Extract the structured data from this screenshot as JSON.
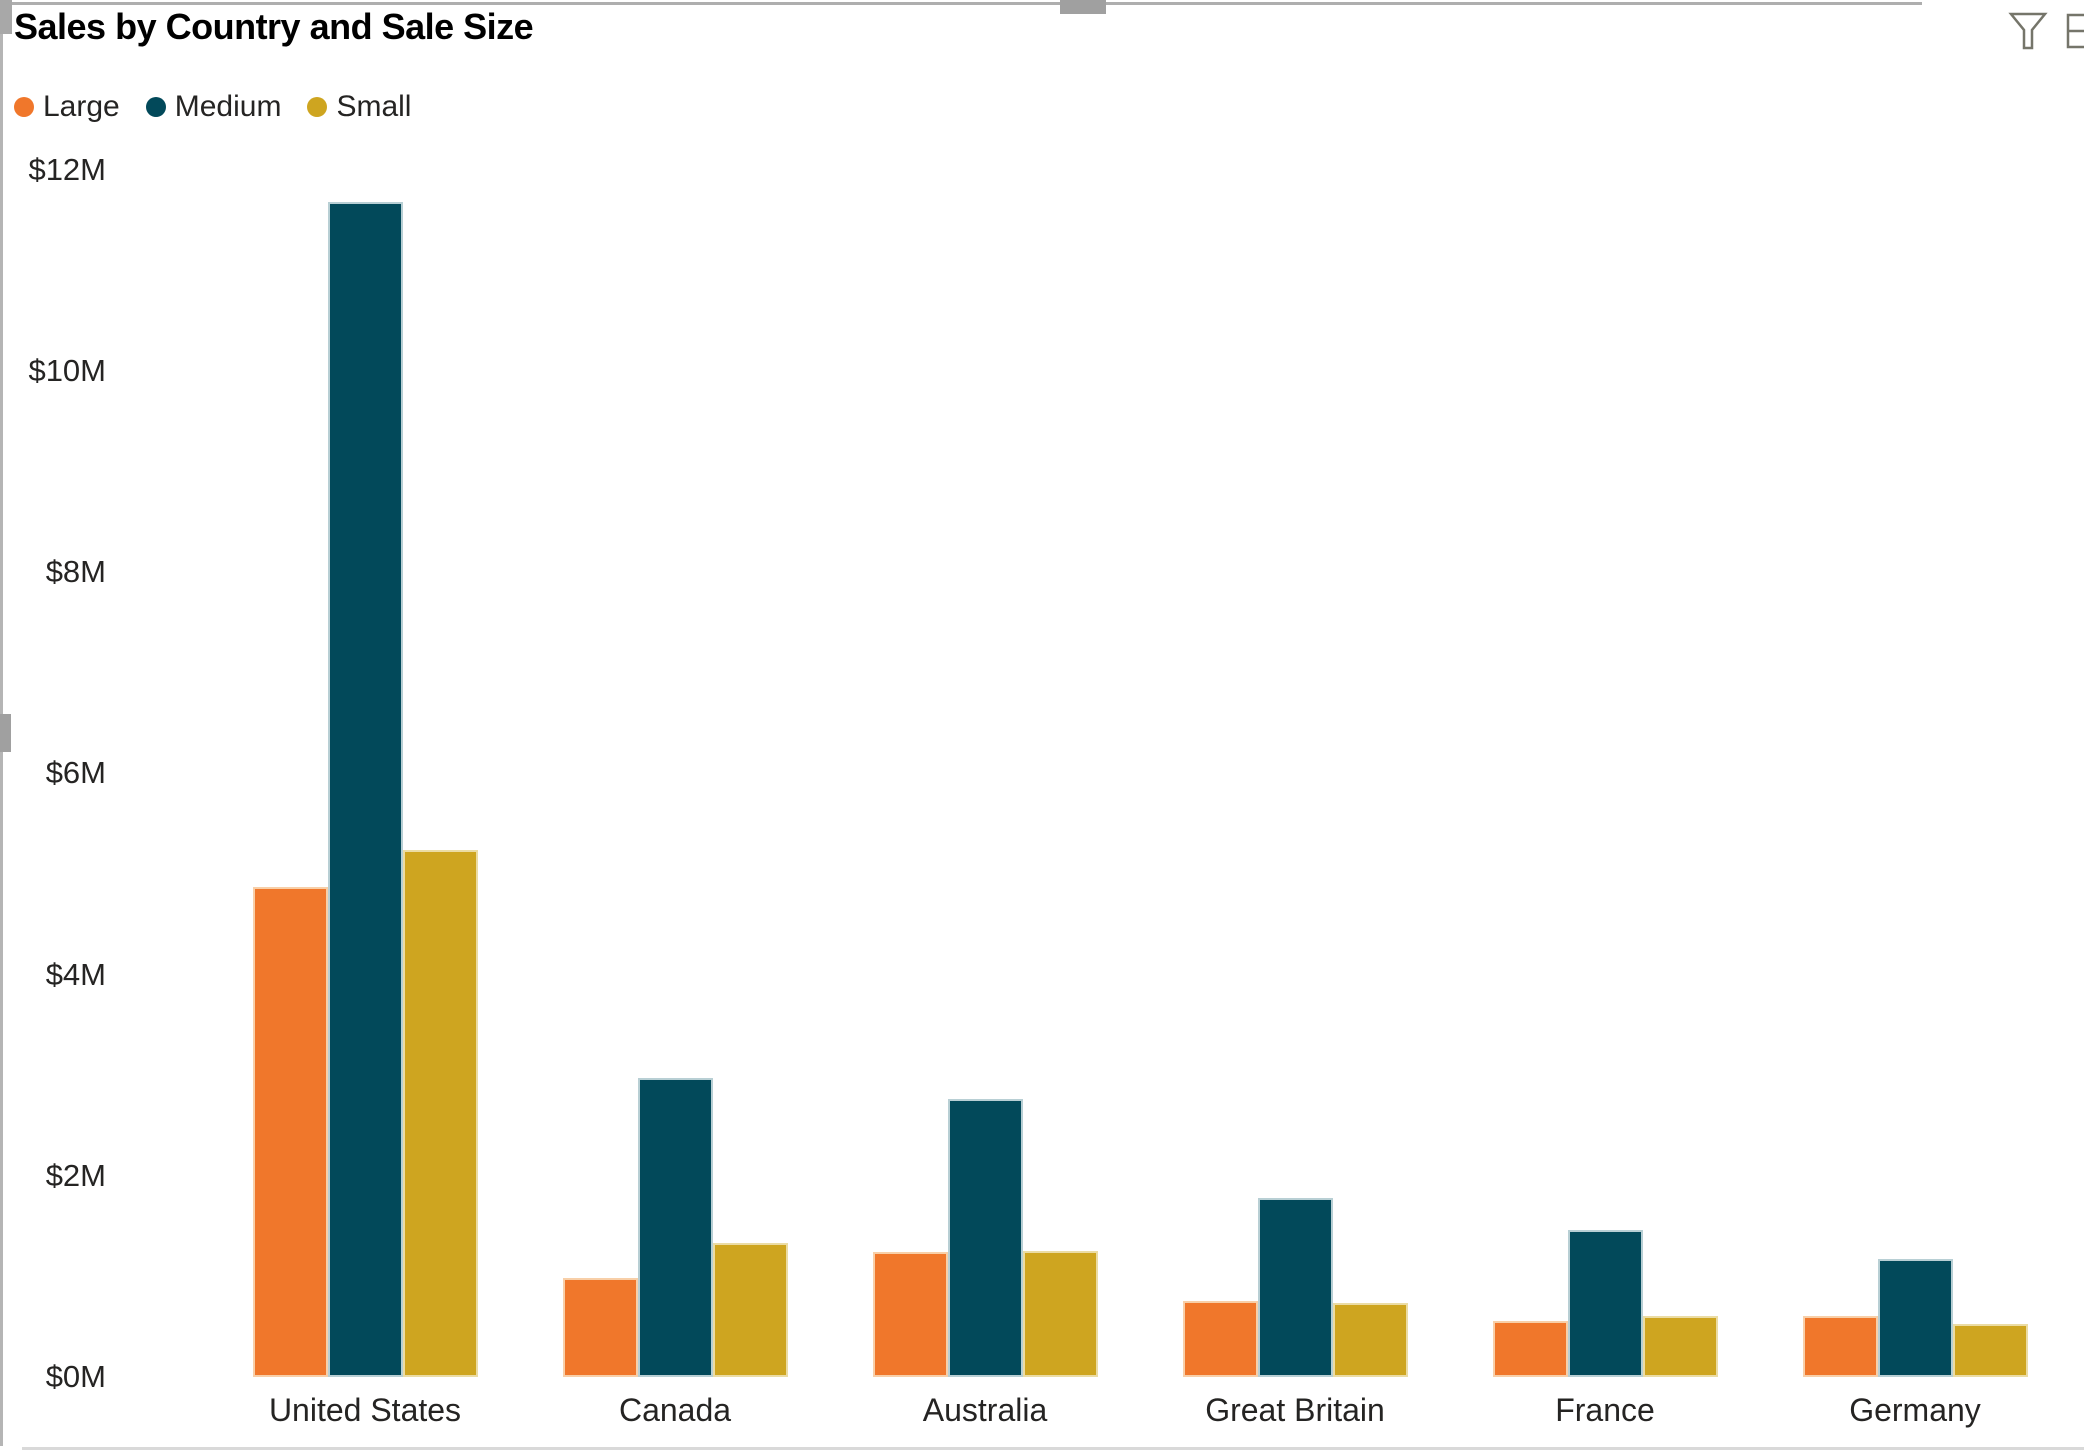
{
  "visual": {
    "title": "Sales by Country and Sale Size",
    "header_icons": [
      {
        "name": "filter-icon"
      },
      {
        "name": "clipped-options-icon"
      }
    ],
    "selection_chrome": {
      "top_handle": true,
      "left_handle": true
    }
  },
  "chart_data": {
    "type": "bar",
    "title": "Sales by Country and Sale Size",
    "categories": [
      "United States",
      "Canada",
      "Australia",
      "Great Britain",
      "France",
      "Germany"
    ],
    "series": [
      {
        "name": "Large",
        "color": "#F0772B",
        "border": "#F8CFA8",
        "values": [
          4.87,
          0.98,
          1.24,
          0.76,
          0.56,
          0.61
        ]
      },
      {
        "name": "Medium",
        "color": "#02495A",
        "border": "#B8CFD4",
        "values": [
          11.68,
          2.97,
          2.76,
          1.78,
          1.46,
          1.17
        ]
      },
      {
        "name": "Small",
        "color": "#CEA520",
        "border": "#EBDCA4",
        "values": [
          5.24,
          1.33,
          1.25,
          0.74,
          0.61,
          0.53
        ]
      }
    ],
    "y_ticks": [
      {
        "label": "$0M",
        "value": 0
      },
      {
        "label": "$2M",
        "value": 2
      },
      {
        "label": "$4M",
        "value": 4
      },
      {
        "label": "$6M",
        "value": 6
      },
      {
        "label": "$8M",
        "value": 8
      },
      {
        "label": "$10M",
        "value": 10
      },
      {
        "label": "$12M",
        "value": 12
      }
    ],
    "ylim": [
      0,
      12
    ],
    "value_unit": "M USD",
    "grid": false,
    "legend_position": "top-left"
  }
}
